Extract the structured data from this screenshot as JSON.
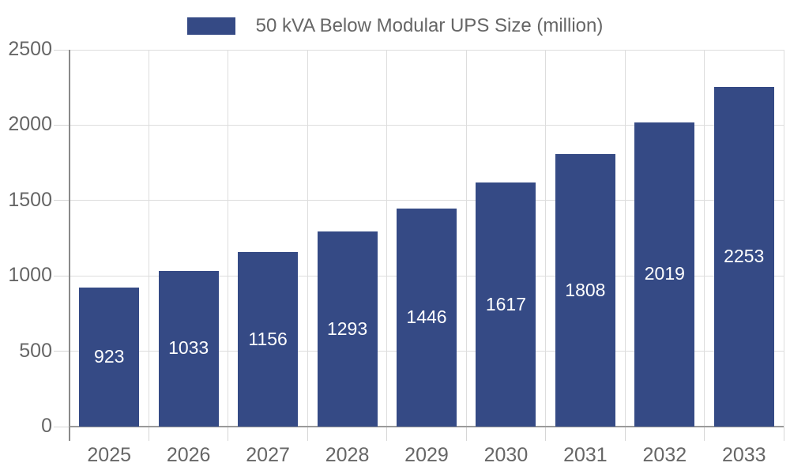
{
  "legend": {
    "label": "50 kVA Below Modular UPS Size (million)"
  },
  "chart_data": {
    "type": "bar",
    "title": "50 kVA Below Modular UPS Size (million)",
    "categories": [
      "2025",
      "2026",
      "2027",
      "2028",
      "2029",
      "2030",
      "2031",
      "2032",
      "2033"
    ],
    "values": [
      923,
      1033,
      1156,
      1293,
      1446,
      1617,
      1808,
      2019,
      2253
    ],
    "xlabel": "",
    "ylabel": "",
    "ylim": [
      0,
      2500
    ],
    "yticks": [
      0,
      500,
      1000,
      1500,
      2000,
      2500
    ],
    "grid": true,
    "value_labels": "inside-center",
    "legend_position": "top-center",
    "colors": {
      "bar": "#354a85",
      "value_label": "#ffffff",
      "axis_text": "#666666",
      "grid_line": "#dddddd",
      "tick_line": "#d6d6d6",
      "x_axis_line": "#9a9a9a",
      "y_axis_line": "#8a8a8a",
      "background": "#ffffff"
    }
  }
}
